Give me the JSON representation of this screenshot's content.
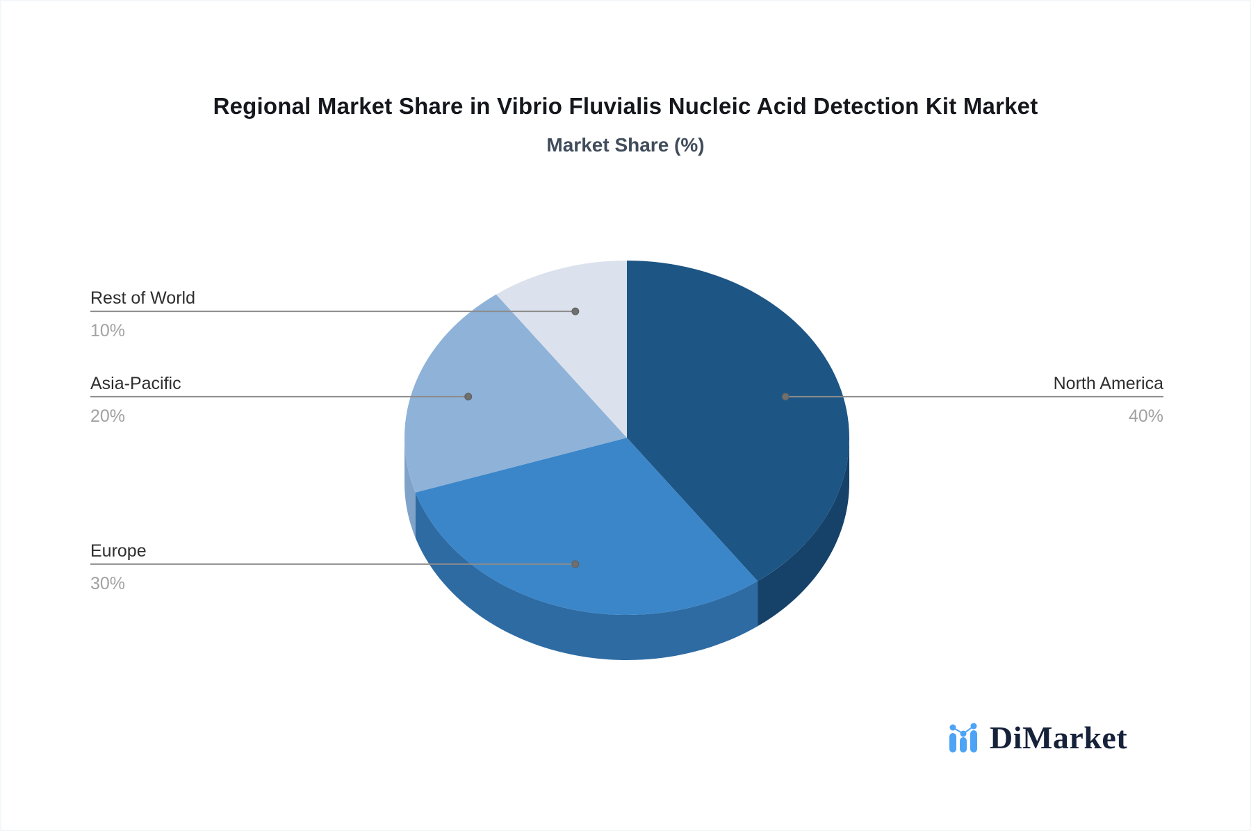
{
  "header": {
    "title": "Regional Market Share in Vibrio Fluvialis Nucleic Acid Detection Kit Market",
    "subtitle": "Market Share (%)"
  },
  "chart_data": {
    "type": "pie",
    "title": "Regional Market Share in Vibrio Fluvialis Nucleic Acid Detection Kit Market",
    "subtitle": "Market Share (%)",
    "effect": "3d",
    "start_angle_deg": 0,
    "direction": "clockwise",
    "value_suffix": "%",
    "slices": [
      {
        "label": "North America",
        "value": 40,
        "color": "#1d5585",
        "side_color": "#16426a",
        "label_side": "right"
      },
      {
        "label": "Europe",
        "value": 30,
        "color": "#3b86c9",
        "side_color": "#2e6ba3",
        "label_side": "left"
      },
      {
        "label": "Asia-Pacific",
        "value": 20,
        "color": "#8fb2d8",
        "side_color": "#7fa3c8",
        "label_side": "left"
      },
      {
        "label": "Rest of World",
        "value": 10,
        "color": "#dbe2ed",
        "side_color": "#b9c6d6",
        "label_side": "left"
      }
    ],
    "legend_position": "callout-labels",
    "leader_line_color": "#8c8c8c",
    "leader_dot_color": "#6f6f6f",
    "label_color": "#2e2e2e",
    "value_color": "#a2a2a2"
  },
  "branding": {
    "logo_text": "DiMarket",
    "logo_icon": "bar-line-chart-icon",
    "logo_bar_color": "#4da3f5",
    "logo_text_color": "#16213a"
  }
}
